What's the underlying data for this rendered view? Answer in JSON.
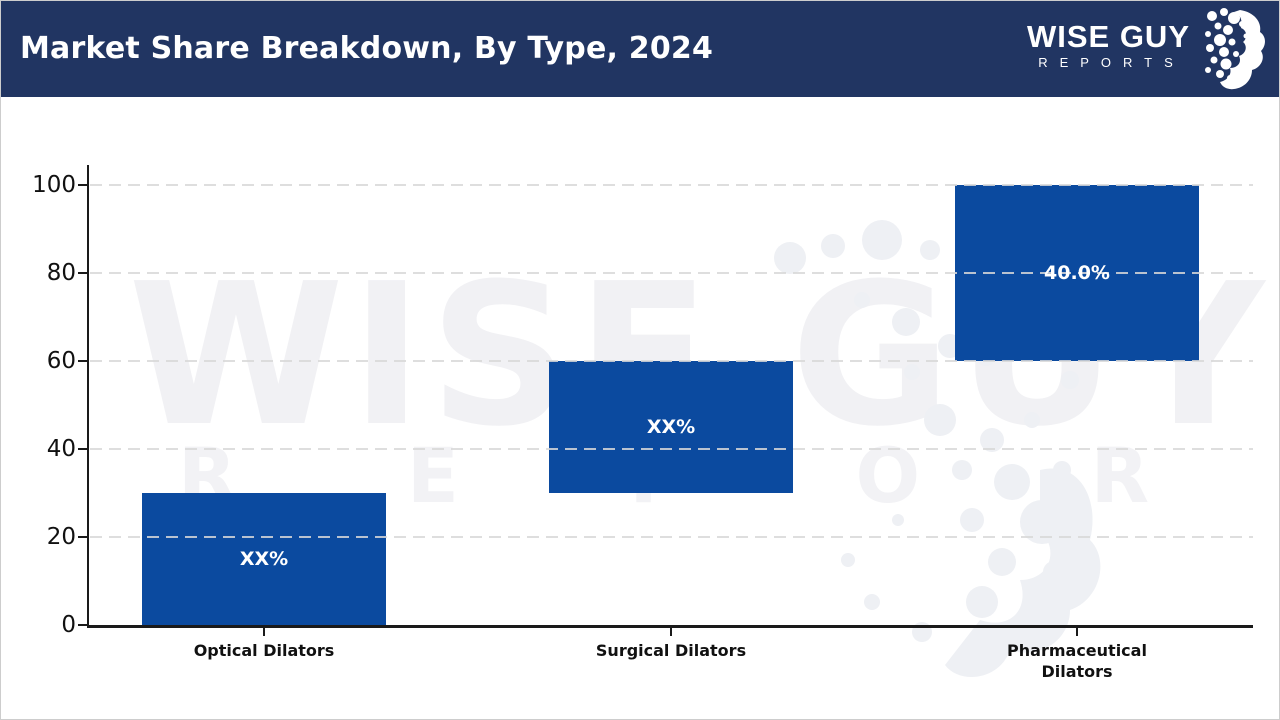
{
  "header": {
    "title": "Market Share Breakdown, By Type, 2024",
    "brand_line1": "WISE GUY",
    "brand_line2": "REPORTS"
  },
  "watermark": {
    "line1": "WISE GUY",
    "line2": "R E P O R T S"
  },
  "chart_data": {
    "type": "bar",
    "subtype": "floating-waterfall",
    "title": "Market Share Breakdown, By Type, 2024",
    "categories": [
      "Optical Dilators",
      "Surgical Dilators",
      "Pharmaceutical Dilators"
    ],
    "bars": [
      {
        "category": "Optical Dilators",
        "start": 0,
        "end": 30,
        "label": "XX%"
      },
      {
        "category": "Surgical Dilators",
        "start": 30,
        "end": 60,
        "label": "XX%"
      },
      {
        "category": "Pharmaceutical Dilators",
        "start": 60,
        "end": 100,
        "label": "40.0%"
      }
    ],
    "ylim": [
      0,
      100
    ],
    "yticks": [
      0,
      20,
      40,
      60,
      80,
      100
    ],
    "grid": "dashed-horizontal-over-bars",
    "legend": "none",
    "xlabel": "",
    "ylabel": ""
  },
  "colors": {
    "header_navy": "#213562",
    "bar_blue": "#0b4a9f",
    "bar_label_white": "#ffffff",
    "gridline_gray": "#d8d8d8",
    "axis_black": "#1a1a1a",
    "watermark_gray": "#f1f1f4"
  }
}
